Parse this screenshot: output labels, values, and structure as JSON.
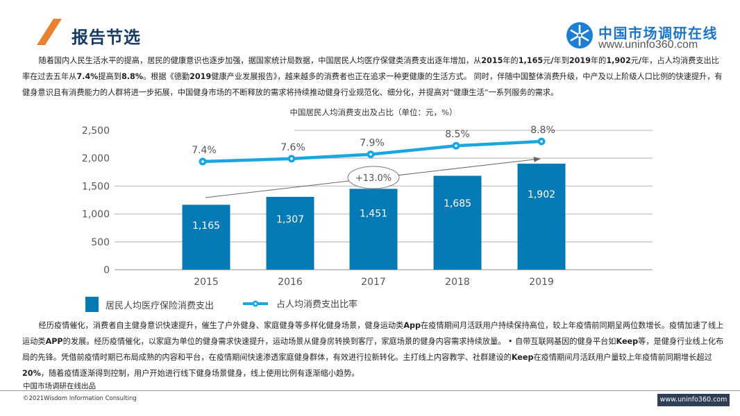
{
  "header": {
    "title": "报告节选",
    "brand_name": "中国市场调研在线",
    "brand_url": "www.uninfo360.com",
    "accent_color": "#e8822e",
    "title_color": "#163a63"
  },
  "paragraph1": {
    "segments": [
      {
        "t": "随着国内人民生活水平的提高，居民的健康意识也逐步加强，据国家统计局数据，中国居民人均医疗保健类消费支出逐年增加，从"
      },
      {
        "t": "2015",
        "b": true
      },
      {
        "t": "年的"
      },
      {
        "t": "1,165",
        "b": true
      },
      {
        "t": "元"
      },
      {
        "t": "/",
        "b": true
      },
      {
        "t": "年到"
      },
      {
        "t": "2019",
        "b": true
      },
      {
        "t": "年的"
      },
      {
        "t": "1,902",
        "b": true
      },
      {
        "t": "元"
      },
      {
        "t": "/",
        "b": true
      },
      {
        "t": "年，占人均消费支出比率在过去五年从"
      },
      {
        "t": "7.4%",
        "b": true
      },
      {
        "t": "提高到"
      },
      {
        "t": "8.8%",
        "b": true
      },
      {
        "t": "。根据《德勤"
      },
      {
        "t": "2019",
        "b": true
      },
      {
        "t": "健康产业发展报告》，越来越多的消费者也正在追求一种更健康的生活方式。 同时，伴随中国整体消费升级，中产及以上阶级人口比例的快速提升，有健身意识且有消费能力的人群将进一步拓展，中国健身市场的不断释放的需求将持续推动健身行业规范化、细分化，并提高对“健康生活”一系列服务的需求。"
      }
    ]
  },
  "paragraph2": {
    "segments": [
      {
        "t": "经历疫情催化，消费者自主健身意识快速提升，催生了户外健身、家庭健身等多样化健身场景，健身运动类"
      },
      {
        "t": "App",
        "b": true
      },
      {
        "t": "在疫情期间月活跃用户持续保持高位，较上年疫情前同期呈两位数增长。疫情加速了线上运动类"
      },
      {
        "t": "APP",
        "b": true
      },
      {
        "t": "的发展。经历疫情催化，以家庭为单位的健身需求快速提升，运动场景从健身房转换到客厅，家庭场景的健身内容需求持续放量。 • 自带互联网基因的健身平台如"
      },
      {
        "t": "Keep",
        "b": true
      },
      {
        "t": "等，是健身行业线上化布局的先锋。凭借前疫情时期已布局成熟的内容和平台，在疫情期间快速渗透家庭健身群体，有效进行拉新转化。主打线上内容教学、社群建设的"
      },
      {
        "t": "Keep",
        "b": true
      },
      {
        "t": "在疫情期间月活跃用户量较上年疫情前同期增长超过"
      },
      {
        "t": "20%",
        "b": true
      },
      {
        "t": "，随着疫情逐渐得到控制，用户开始进行线下健身场景健身，线上使用比例有逐渐缩小趋势。"
      }
    ]
  },
  "chart_data": {
    "type": "bar",
    "title": "中国居民人均消费支出及占比（单位：元，%）",
    "categories": [
      "2015",
      "2016",
      "2017",
      "2018",
      "2019"
    ],
    "series": [
      {
        "name": "居民人均医疗保险消费支出",
        "type": "bar",
        "axis": "left",
        "color": "#067ab4",
        "values": [
          1165,
          1307,
          1451,
          1685,
          1902
        ],
        "labels": [
          "1,165",
          "1,307",
          "1,451",
          "1,685",
          "1,902"
        ]
      },
      {
        "name": "占人均消费支出比率",
        "type": "line",
        "axis": "secondary",
        "color": "#1aa7e0",
        "values": [
          7.4,
          7.6,
          7.9,
          8.5,
          8.8
        ],
        "labels": [
          "7.4%",
          "7.6%",
          "7.9%",
          "8.5%",
          "8.8%"
        ]
      }
    ],
    "ylim": [
      0,
      2500
    ],
    "yticks": [
      0,
      500,
      1000,
      1500,
      2000,
      2500
    ],
    "ytick_labels": [
      "0",
      "500",
      "1,000",
      "1,500",
      "2,000",
      "2,500"
    ],
    "xlabel": "",
    "ylabel": "",
    "grid": true,
    "legend": "bottom-left",
    "annotation": {
      "text": "+13.0%",
      "type": "trend-arrow",
      "from": "2015",
      "to": "2019"
    }
  },
  "footer": {
    "source": "中国市场调研在线出品",
    "copyright": "©2021Wisdom Information Consulting",
    "url": "www.uninfo360.com"
  }
}
